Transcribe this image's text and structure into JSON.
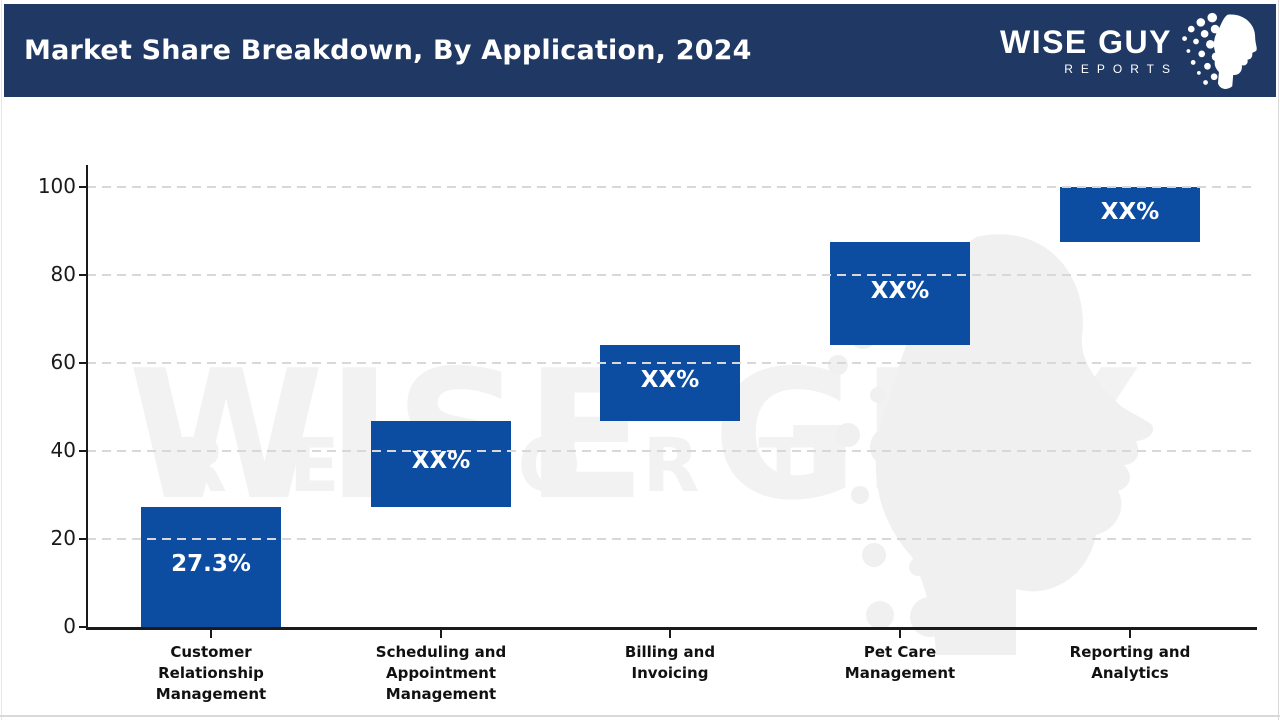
{
  "header": {
    "title": "Market Share Breakdown, By Application, 2024"
  },
  "logo": {
    "line1": "WISE GUY",
    "line2": "REPORTS"
  },
  "watermark": {
    "line1": "WISE GUY",
    "line2": "REPORTS"
  },
  "colors": {
    "header_bg": "#1f3864",
    "bar": "#0c4da2",
    "bar_label_text": "#ffffff",
    "gridline": "#d8d8d8",
    "axis": "#1a1a1a",
    "watermark": "#f2f2f2"
  },
  "chart_data": {
    "type": "bar",
    "subtype": "waterfall",
    "title": "Market Share Breakdown, By Application, 2024",
    "categories": [
      "Customer Relationship Management",
      "Scheduling and Appointment Management",
      "Billing and Invoicing",
      "Pet Care Management",
      "Reporting and Analytics"
    ],
    "category_lines": [
      [
        "Customer",
        "Relationship",
        "Management"
      ],
      [
        "Scheduling and",
        "Appointment",
        "Management"
      ],
      [
        "Billing and",
        "Invoicing"
      ],
      [
        "Pet Care",
        "Management"
      ],
      [
        "Reporting and",
        "Analytics"
      ]
    ],
    "segments": [
      {
        "category": "Customer Relationship Management",
        "start": 0,
        "end": 27.3,
        "label": "27.3%"
      },
      {
        "category": "Scheduling and Appointment Management",
        "start": 27.3,
        "end": 46.8,
        "label": "XX%"
      },
      {
        "category": "Billing and Invoicing",
        "start": 46.8,
        "end": 64.0,
        "label": "XX%"
      },
      {
        "category": "Pet Care Management",
        "start": 64.0,
        "end": 87.5,
        "label": "XX%"
      },
      {
        "category": "Reporting and Analytics",
        "start": 87.5,
        "end": 100.0,
        "label": "XX%"
      }
    ],
    "ylim": [
      0,
      105
    ],
    "yticks": [
      0,
      20,
      40,
      60,
      80,
      100
    ],
    "grid": "horizontal-dashed",
    "legend": "none",
    "bar_color": "#0c4da2"
  }
}
